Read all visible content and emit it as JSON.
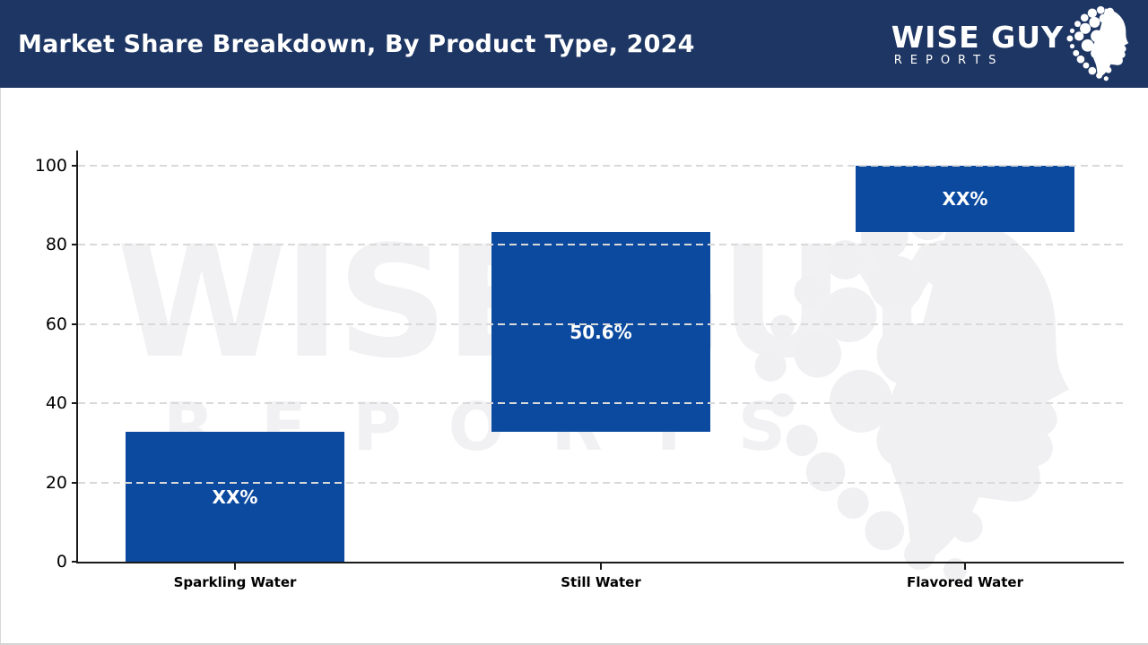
{
  "header": {
    "title": "Market Share Breakdown, By Product Type, 2024",
    "logo": {
      "name": "WISE GUY",
      "sub": "REPORTS"
    }
  },
  "watermark": {
    "name": "WISE GUY",
    "sub": "REPORTS"
  },
  "chart_data": {
    "type": "bar",
    "subtype": "waterfall",
    "title": "Market Share Breakdown, By Product Type, 2024",
    "categories": [
      "Sparkling Water",
      "Still Water",
      "Flavored Water"
    ],
    "segments": [
      {
        "category": "Sparkling Water",
        "base": 0,
        "value": 32.7,
        "label": "XX%"
      },
      {
        "category": "Still Water",
        "base": 32.7,
        "value": 50.6,
        "label": "50.6%"
      },
      {
        "category": "Flavored Water",
        "base": 83.3,
        "value": 16.7,
        "label": "XX%"
      }
    ],
    "values": [
      32.7,
      50.6,
      16.7
    ],
    "bar_labels": [
      "XX%",
      "50.6%",
      "XX%"
    ],
    "cumulative_top": 100,
    "yticks": [
      0,
      20,
      40,
      60,
      80,
      100
    ],
    "ylim": [
      0,
      104
    ],
    "xlabel": "",
    "ylabel": "",
    "grid": "horizontal dashed, drawn above bars",
    "legend": "none",
    "colors": {
      "bar": "#0b4a9f",
      "bar_label": "#ffffff",
      "grid": "#d9d9d9",
      "axis": "#1a1a1a",
      "header_bg": "#1e3663",
      "header_text": "#ffffff",
      "watermark": "#f1f1f3"
    }
  }
}
